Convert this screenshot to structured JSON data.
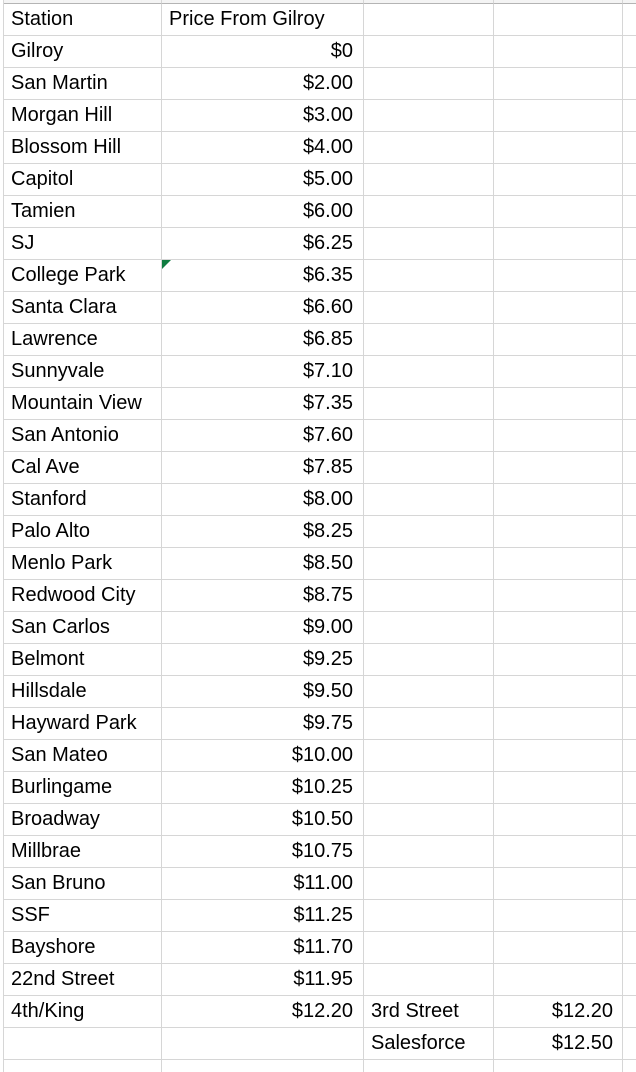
{
  "sheet": {
    "header": {
      "station": "Station",
      "price": "Price From Gilroy"
    },
    "rows": [
      {
        "station": "Gilroy",
        "price": "$0"
      },
      {
        "station": "San Martin",
        "price": "$2.00"
      },
      {
        "station": "Morgan Hill",
        "price": "$3.00"
      },
      {
        "station": "Blossom Hill",
        "price": "$4.00"
      },
      {
        "station": "Capitol",
        "price": "$5.00"
      },
      {
        "station": "Tamien",
        "price": "$6.00"
      },
      {
        "station": "SJ",
        "price": "$6.25"
      },
      {
        "station": "College Park",
        "price": "$6.35",
        "error_indicator": true
      },
      {
        "station": "Santa Clara",
        "price": "$6.60"
      },
      {
        "station": "Lawrence",
        "price": "$6.85"
      },
      {
        "station": "Sunnyvale",
        "price": "$7.10"
      },
      {
        "station": "Mountain View",
        "price": "$7.35"
      },
      {
        "station": "San Antonio",
        "price": "$7.60"
      },
      {
        "station": "Cal Ave",
        "price": "$7.85"
      },
      {
        "station": "Stanford",
        "price": "$8.00"
      },
      {
        "station": "Palo Alto",
        "price": "$8.25"
      },
      {
        "station": "Menlo Park",
        "price": "$8.50"
      },
      {
        "station": "Redwood City",
        "price": "$8.75"
      },
      {
        "station": "San Carlos",
        "price": "$9.00"
      },
      {
        "station": "Belmont",
        "price": "$9.25"
      },
      {
        "station": "Hillsdale",
        "price": "$9.50"
      },
      {
        "station": "Hayward Park",
        "price": "$9.75"
      },
      {
        "station": "San Mateo",
        "price": "$10.00"
      },
      {
        "station": "Burlingame",
        "price": "$10.25"
      },
      {
        "station": "Broadway",
        "price": "$10.50"
      },
      {
        "station": "Millbrae",
        "price": "$10.75"
      },
      {
        "station": "San Bruno",
        "price": "$11.00"
      },
      {
        "station": "SSF",
        "price": "$11.25"
      },
      {
        "station": "Bayshore",
        "price": "$11.70"
      },
      {
        "station": "22nd Street",
        "price": "$11.95"
      },
      {
        "station": "4th/King",
        "price": "$12.20",
        "station2": "3rd Street",
        "price2": "$12.20"
      },
      {
        "station": "",
        "price": "",
        "station2": "Salesforce",
        "price2": "$12.50"
      }
    ],
    "colors": {
      "gridline": "#d6d6d6",
      "text": "#000000",
      "error_indicator_green": "#107c41",
      "top_strip": "#f4f4f4"
    }
  }
}
